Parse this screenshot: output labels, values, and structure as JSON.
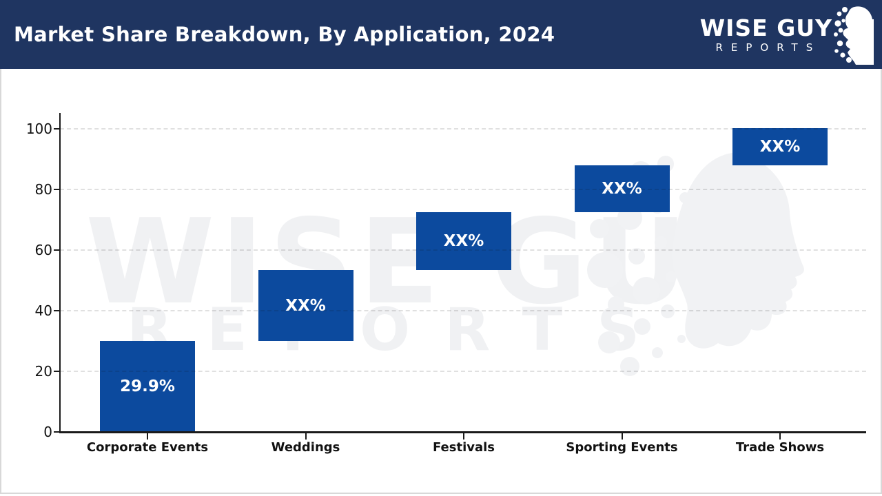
{
  "header": {
    "title": "Market Share Breakdown, By Application, 2024",
    "logo": {
      "line1": "WISE GUY",
      "line2": "REPORTS"
    }
  },
  "watermark": {
    "line1": "WISE GUY",
    "line2": "REPORTS"
  },
  "chart_data": {
    "type": "bar",
    "subtype": "waterfall",
    "title": "Market Share Breakdown, By Application, 2024",
    "categories": [
      "Corporate Events",
      "Weddings",
      "Festivals",
      "Sporting Events",
      "Trade Shows"
    ],
    "segments": [
      {
        "category": "Corporate Events",
        "start": 0,
        "end": 29.9,
        "label": "29.9%"
      },
      {
        "category": "Weddings",
        "start": 29.9,
        "end": 53.5,
        "label": "XX%"
      },
      {
        "category": "Festivals",
        "start": 53.5,
        "end": 72.4,
        "label": "XX%"
      },
      {
        "category": "Sporting Events",
        "start": 72.4,
        "end": 88.0,
        "label": "XX%"
      },
      {
        "category": "Trade Shows",
        "start": 88.0,
        "end": 100.3,
        "label": "XX%"
      }
    ],
    "yticks": [
      0,
      20,
      40,
      60,
      80,
      100
    ],
    "ylim": [
      0,
      105
    ],
    "xlabel": "",
    "ylabel": "",
    "grid": "dashed-horizontal",
    "legend": "none",
    "bar_color": "#0c4a9e",
    "value_label_color": "#ffffff"
  },
  "colors": {
    "header_bg": "#1f3561",
    "axis": "#1a1a1a",
    "watermark": "#f0f1f3",
    "border": "#d8d8d8"
  }
}
